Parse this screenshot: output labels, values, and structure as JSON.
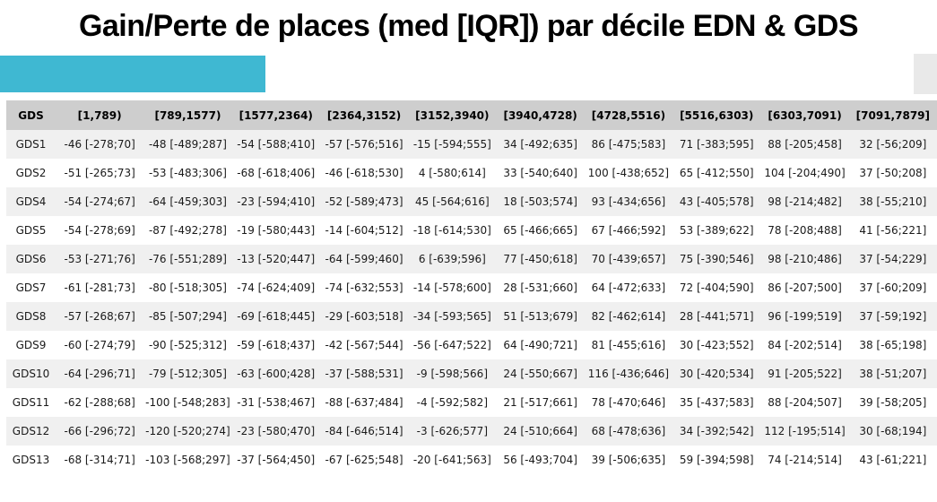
{
  "title": "Gain/Perte de places (med [IQR]) par décile EDN & GDS",
  "colors": {
    "accent_bar": "#3FB8D2",
    "corner_rect": "#E9E9E9",
    "header_bg": "#CECECE",
    "row_alt_bg": "#F0F0F0",
    "row_bg": "#FFFFFF",
    "text": "#1A1A1A"
  },
  "chart_data": {
    "type": "table",
    "title": "Gain/Perte de places (med [IQR]) par décile EDN & GDS",
    "value_format": "median [IQR-low;IQR-high]",
    "columns": [
      "GDS",
      "[1,789)",
      "[789,1577)",
      "[1577,2364)",
      "[2364,3152)",
      "[3152,3940)",
      "[3940,4728)",
      "[4728,5516)",
      "[5516,6303)",
      "[6303,7091)",
      "[7091,7879]"
    ],
    "rows": [
      {
        "label": "GDS1",
        "values": [
          "-46 [-278;70]",
          "-48 [-489;287]",
          "-54 [-588;410]",
          "-57 [-576;516]",
          "-15 [-594;555]",
          "34 [-492;635]",
          "86 [-475;583]",
          "71 [-383;595]",
          "88 [-205;458]",
          "32 [-56;209]"
        ]
      },
      {
        "label": "GDS2",
        "values": [
          "-51 [-265;73]",
          "-53 [-483;306]",
          "-68 [-618;406]",
          "-46 [-618;530]",
          "4 [-580;614]",
          "33 [-540;640]",
          "100 [-438;652]",
          "65 [-412;550]",
          "104 [-204;490]",
          "37 [-50;208]"
        ]
      },
      {
        "label": "GDS4",
        "values": [
          "-54 [-274;67]",
          "-64 [-459;303]",
          "-23 [-594;410]",
          "-52 [-589;473]",
          "45 [-564;616]",
          "18 [-503;574]",
          "93 [-434;656]",
          "43 [-405;578]",
          "98 [-214;482]",
          "38 [-55;210]"
        ]
      },
      {
        "label": "GDS5",
        "values": [
          "-54 [-278;69]",
          "-87 [-492;278]",
          "-19 [-580;443]",
          "-14 [-604;512]",
          "-18 [-614;530]",
          "65 [-466;665]",
          "67 [-466;592]",
          "53 [-389;622]",
          "78 [-208;488]",
          "41 [-56;221]"
        ]
      },
      {
        "label": "GDS6",
        "values": [
          "-53 [-271;76]",
          "-76 [-551;289]",
          "-13 [-520;447]",
          "-64 [-599;460]",
          "6 [-639;596]",
          "77 [-450;618]",
          "70 [-439;657]",
          "75 [-390;546]",
          "98 [-210;486]",
          "37 [-54;229]"
        ]
      },
      {
        "label": "GDS7",
        "values": [
          "-61 [-281;73]",
          "-80 [-518;305]",
          "-74 [-624;409]",
          "-74 [-632;553]",
          "-14 [-578;600]",
          "28 [-531;660]",
          "64 [-472;633]",
          "72 [-404;590]",
          "86 [-207;500]",
          "37 [-60;209]"
        ]
      },
      {
        "label": "GDS8",
        "values": [
          "-57 [-268;67]",
          "-85 [-507;294]",
          "-69 [-618;445]",
          "-29 [-603;518]",
          "-34 [-593;565]",
          "51 [-513;679]",
          "82 [-462;614]",
          "28 [-441;571]",
          "96 [-199;519]",
          "37 [-59;192]"
        ]
      },
      {
        "label": "GDS9",
        "values": [
          "-60 [-274;79]",
          "-90 [-525;312]",
          "-59 [-618;437]",
          "-42 [-567;544]",
          "-56 [-647;522]",
          "64 [-490;721]",
          "81 [-455;616]",
          "30 [-423;552]",
          "84 [-202;514]",
          "38 [-65;198]"
        ]
      },
      {
        "label": "GDS10",
        "values": [
          "-64 [-296;71]",
          "-79 [-512;305]",
          "-63 [-600;428]",
          "-37 [-588;531]",
          "-9 [-598;566]",
          "24 [-550;667]",
          "116 [-436;646]",
          "30 [-420;534]",
          "91 [-205;522]",
          "38 [-51;207]"
        ]
      },
      {
        "label": "GDS11",
        "values": [
          "-62 [-288;68]",
          "-100 [-548;283]",
          "-31 [-538;467]",
          "-88 [-637;484]",
          "-4 [-592;582]",
          "21 [-517;661]",
          "78 [-470;646]",
          "35 [-437;583]",
          "88 [-204;507]",
          "39 [-58;205]"
        ]
      },
      {
        "label": "GDS12",
        "values": [
          "-66 [-296;72]",
          "-120 [-520;274]",
          "-23 [-580;470]",
          "-84 [-646;514]",
          "-3 [-626;577]",
          "24 [-510;664]",
          "68 [-478;636]",
          "34 [-392;542]",
          "112 [-195;514]",
          "30 [-68;194]"
        ]
      },
      {
        "label": "GDS13",
        "values": [
          "-68 [-314;71]",
          "-103 [-568;297]",
          "-37 [-564;450]",
          "-67 [-625;548]",
          "-20 [-641;563]",
          "56 [-493;704]",
          "39 [-506;635]",
          "59 [-394;598]",
          "74 [-214;514]",
          "43 [-61;221]"
        ]
      }
    ]
  }
}
